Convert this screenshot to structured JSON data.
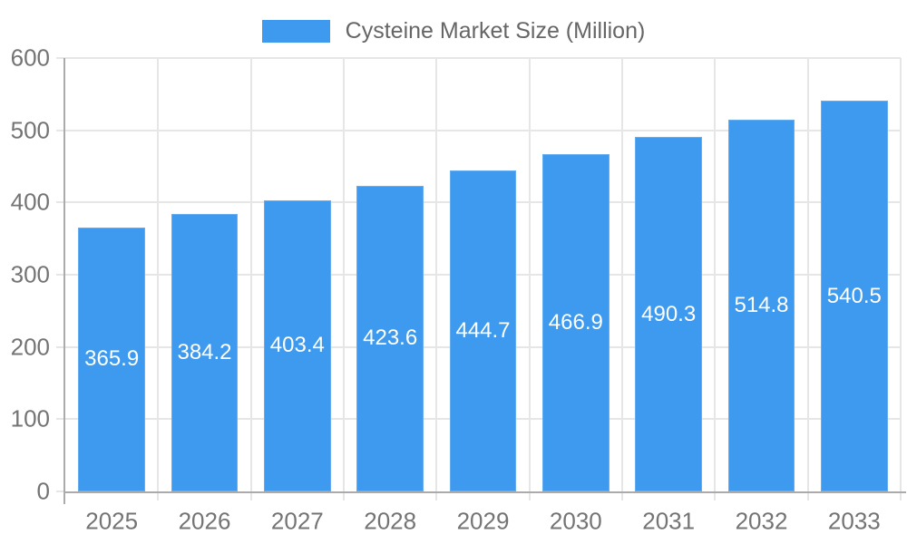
{
  "chart": {
    "legend": {
      "label": "Cysteine Market Size (Million)"
    }
  },
  "chart_data": {
    "type": "bar",
    "title": "Cysteine Market Size (Million)",
    "categories": [
      "2025",
      "2026",
      "2027",
      "2028",
      "2029",
      "2030",
      "2031",
      "2032",
      "2033"
    ],
    "series": [
      {
        "name": "Cysteine Market Size (Million)",
        "values": [
          365.9,
          384.2,
          403.4,
          423.6,
          444.7,
          466.9,
          490.3,
          514.8,
          540.5
        ]
      }
    ],
    "xlabel": "",
    "ylabel": "",
    "ylim": [
      0,
      600
    ],
    "yticks": [
      0,
      100,
      200,
      300,
      400,
      500,
      600
    ],
    "grid": true,
    "legend_position": "top-center",
    "bar_label_position": "inside-center",
    "colors": {
      "bar_fill": "#3E9AEE",
      "bar_border": "#65AEF1",
      "bar_label_text": "#FFFFFF",
      "axis_line": "#ABABAB",
      "gridline": "#E6E6E6",
      "axis_label_text": "#747474",
      "legend_text": "#666666",
      "background": "#FFFFFF"
    }
  }
}
